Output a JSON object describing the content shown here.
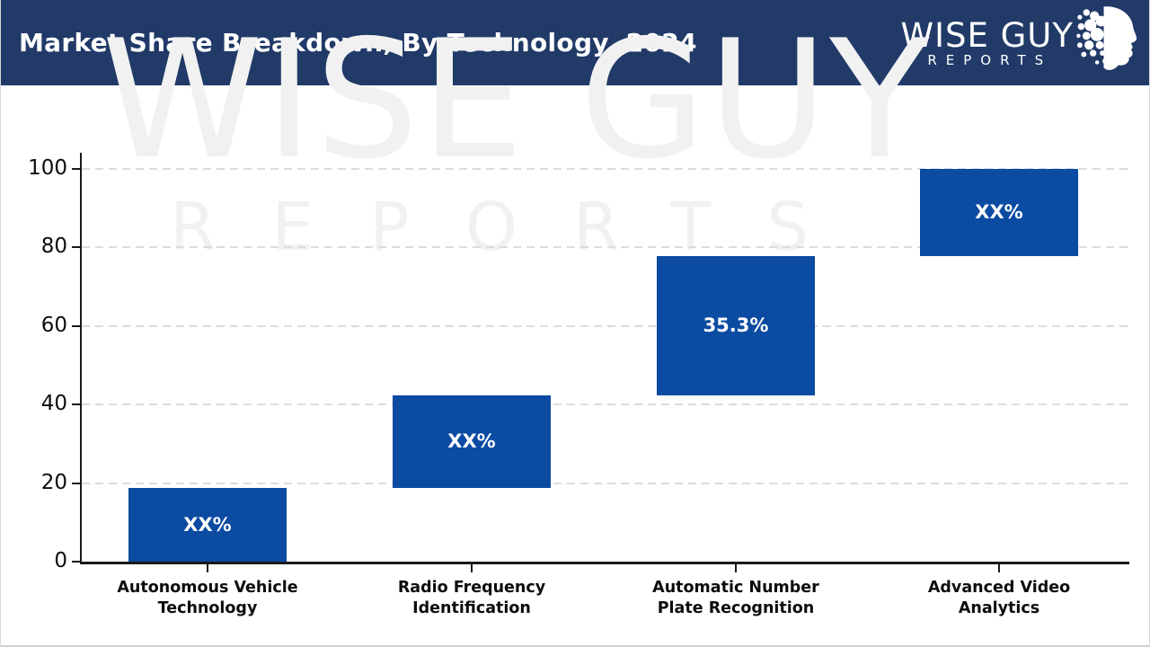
{
  "header": {
    "title": "Market Share Breakdown, By Technology, 2024",
    "logo": {
      "line1": "WISE GUY",
      "line2": "REPORTS"
    }
  },
  "watermark": {
    "line1": "WISE GUY",
    "line2": "REPORTS"
  },
  "colors": {
    "header_bg": "#213a68",
    "bar": "#0b4ba1",
    "bar_label": "#ffffff",
    "grid": "#dcdcdc",
    "axis": "#1a1a1a",
    "watermark": "#f1f1f1"
  },
  "chart_data": {
    "type": "bar",
    "subtype": "waterfall",
    "title": "Market Share Breakdown, By Technology, 2024",
    "categories": [
      "Autonomous Vehicle\nTechnology",
      "Radio Frequency\nIdentification",
      "Automatic Number\nPlate Recognition",
      "Advanced Video\nAnalytics"
    ],
    "series": [
      {
        "name": "Market Share",
        "segments": [
          {
            "category": "Autonomous Vehicle Technology",
            "start": 0,
            "end": 18.8,
            "label": "XX%"
          },
          {
            "category": "Radio Frequency Identification",
            "start": 18.8,
            "end": 42.4,
            "label": "XX%"
          },
          {
            "category": "Automatic Number Plate Recognition",
            "start": 42.4,
            "end": 77.7,
            "label": "35.3%"
          },
          {
            "category": "Advanced Video Analytics",
            "start": 77.7,
            "end": 100,
            "label": "XX%"
          }
        ]
      }
    ],
    "ylim": [
      0,
      104
    ],
    "yticks": [
      0,
      20,
      40,
      60,
      80,
      100
    ],
    "xlabel": "",
    "ylabel": "",
    "grid": "horizontal dashed",
    "legend": "none"
  }
}
